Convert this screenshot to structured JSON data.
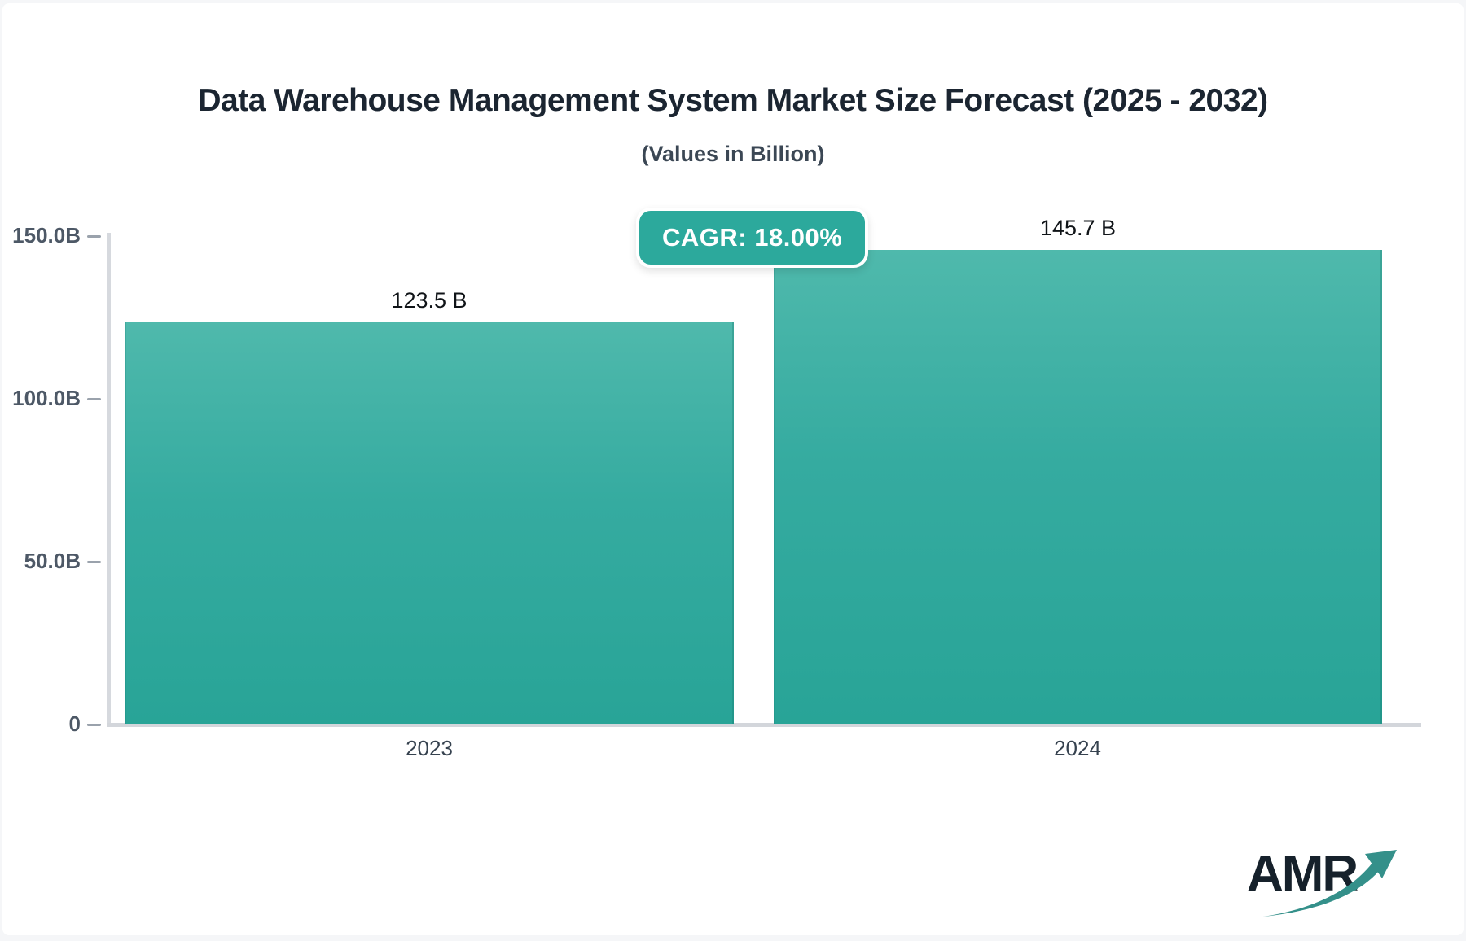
{
  "page": {
    "background_color": "#f5f6f8",
    "card_color": "#ffffff"
  },
  "chart_data": {
    "type": "bar",
    "title": "Data Warehouse Management System Market Size Forecast (2025 - 2032)",
    "subtitle": "(Values in Billion)",
    "categories": [
      "2023",
      "2024"
    ],
    "values": [
      123.5,
      145.7
    ],
    "value_labels": [
      "123.5 B",
      "145.7 B"
    ],
    "unit": "Billion",
    "ylim": [
      0,
      150
    ],
    "yticks": [
      {
        "value": 150,
        "label": "150.0B"
      },
      {
        "value": 100,
        "label": "100.0B"
      },
      {
        "value": 50,
        "label": "50.0B"
      },
      {
        "value": 0,
        "label": "0"
      }
    ],
    "grid": false,
    "legend": false,
    "annotations": [
      {
        "name": "cagr-badge",
        "text": "CAGR: 18.00%"
      }
    ],
    "colors": {
      "bar_gradient_top": "#4fb9ac",
      "bar_gradient_bottom": "#28a497",
      "badge_background": "#2ca99c",
      "badge_text": "#ffffff",
      "axis_line": "#d6d9de",
      "tick_label": "#4d5866",
      "value_label": "#101418",
      "title": "#1b2531",
      "subtitle": "#3b4754"
    }
  },
  "branding": {
    "logo_text": "AMR",
    "logo_text_color": "#16212b",
    "logo_arrow_color": "#34908a"
  }
}
